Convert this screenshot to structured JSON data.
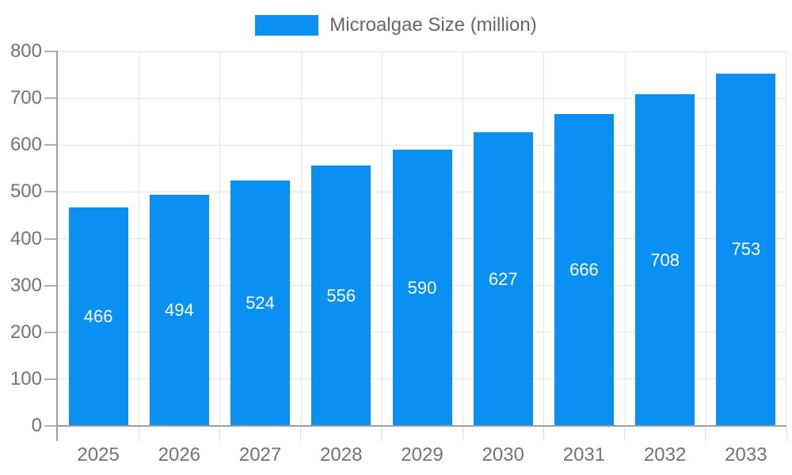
{
  "chart_data": {
    "type": "bar",
    "title": "",
    "legend": {
      "label": "Microalgae Size (million)",
      "position": "top"
    },
    "categories": [
      "2025",
      "2026",
      "2027",
      "2028",
      "2029",
      "2030",
      "2031",
      "2032",
      "2033"
    ],
    "series": [
      {
        "name": "Microalgae Size (million)",
        "values": [
          466,
          494,
          524,
          556,
          590,
          627,
          666,
          708,
          753
        ]
      }
    ],
    "value_labels": [
      "466",
      "494",
      "524",
      "556",
      "590",
      "627",
      "666",
      "708",
      "753"
    ],
    "ylabel": "",
    "xlabel": "",
    "ylim": [
      0,
      800
    ],
    "ytick_step": 100,
    "ytick_labels": [
      "0",
      "100",
      "200",
      "300",
      "400",
      "500",
      "600",
      "700",
      "800"
    ],
    "grid": true,
    "colors": {
      "bar": "#0a90f2",
      "value_label": "#ffffff",
      "grid_line": "#e7e7e7",
      "axis_line": "#9f9f9f",
      "y_tick": "#b0b0b0",
      "x_tick": "#dcdcdc",
      "tick_label": "#737373",
      "legend_text": "#666666",
      "background": "#ffffff"
    }
  }
}
